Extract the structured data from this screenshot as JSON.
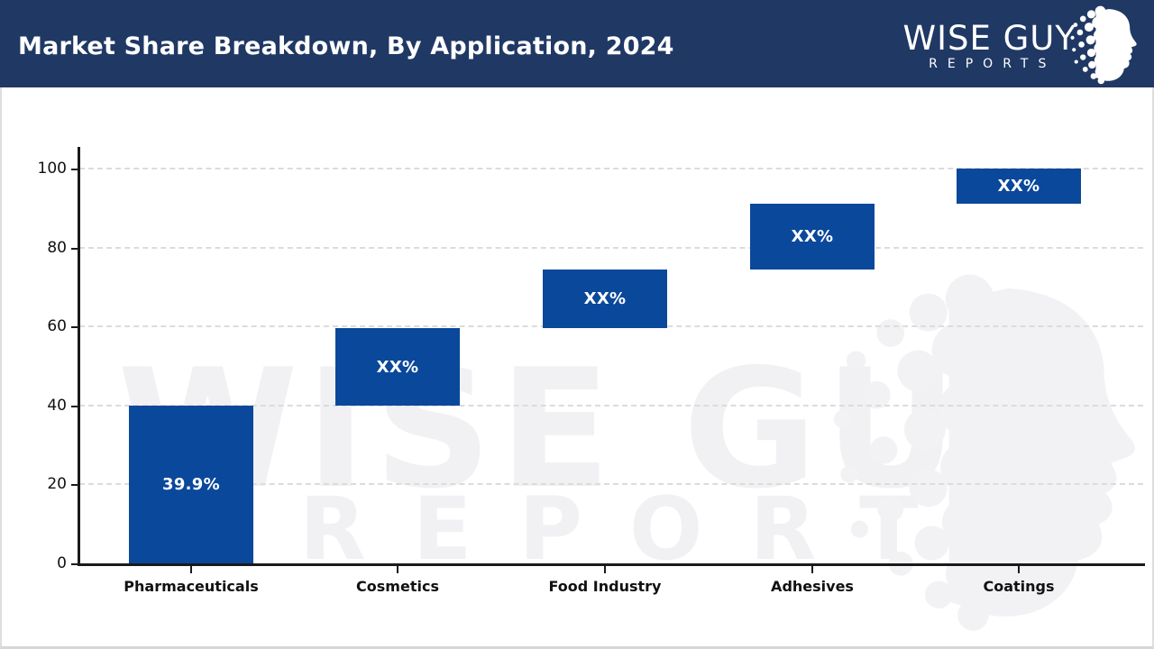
{
  "header": {
    "title": "Market Share Breakdown, By Application, 2024",
    "bg_color": "#203864",
    "logo": {
      "line1": "WISE GUY",
      "line2": "REPORTS"
    }
  },
  "watermark": {
    "line1": "WISE GUY",
    "line2": "REPORTS"
  },
  "chart_data": {
    "type": "bar",
    "subtype": "waterfall",
    "title": "Market Share Breakdown, By Application, 2024",
    "xlabel": "",
    "ylabel": "",
    "ylim": [
      0,
      105.5
    ],
    "yticks": [
      0,
      20,
      40,
      60,
      80,
      100
    ],
    "grid": "horizontal-dashed",
    "legend": "none",
    "bar_color": "#0a489b",
    "bar_label_color": "#ffffff",
    "categories": [
      "Pharmaceuticals",
      "Cosmetics",
      "Food Industry",
      "Adhesives",
      "Coatings"
    ],
    "segments": [
      {
        "category": "Pharmaceuticals",
        "start": 0,
        "end": 39.9,
        "value": 39.9,
        "label": "39.9%"
      },
      {
        "category": "Cosmetics",
        "start": 39.9,
        "end": 59.5,
        "value": 19.6,
        "label": "XX%"
      },
      {
        "category": "Food Industry",
        "start": 59.5,
        "end": 74.4,
        "value": 14.9,
        "label": "XX%"
      },
      {
        "category": "Adhesives",
        "start": 74.4,
        "end": 91.1,
        "value": 16.7,
        "label": "XX%"
      },
      {
        "category": "Coatings",
        "start": 91.1,
        "end": 100.0,
        "value": 8.9,
        "label": "XX%"
      }
    ]
  }
}
